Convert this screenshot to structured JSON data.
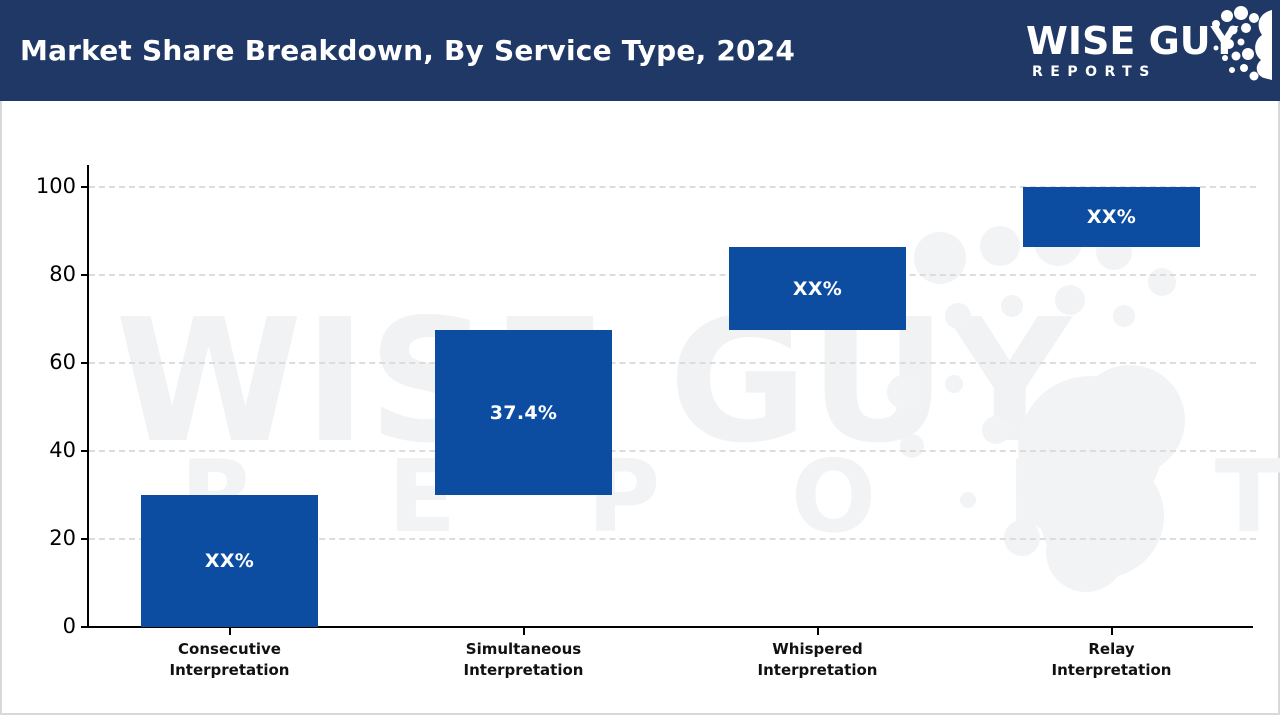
{
  "header": {
    "title": "Market Share Breakdown, By Service Type, 2024",
    "logo": {
      "line1": "WISE GUY",
      "line2": "R E P O R T S"
    }
  },
  "watermark": {
    "line1": "WISE GUY",
    "line2": "R E P O R T S"
  },
  "chart_data": {
    "type": "bar",
    "subtype": "floating-waterfall",
    "title": "Market Share Breakdown, By Service Type, 2024",
    "categories": [
      "Consecutive Interpretation",
      "Simultaneous Interpretation",
      "Whispered Interpretation",
      "Relay Interpretation"
    ],
    "segments": [
      {
        "category": "Consecutive Interpretation",
        "start": 0,
        "end": 30,
        "label": "XX%"
      },
      {
        "category": "Simultaneous Interpretation",
        "start": 30,
        "end": 67.4,
        "label": "37.4%"
      },
      {
        "category": "Whispered Interpretation",
        "start": 67.4,
        "end": 86.4,
        "label": "XX%"
      },
      {
        "category": "Relay Interpretation",
        "start": 86.4,
        "end": 100,
        "label": "XX%"
      }
    ],
    "xlabel": "",
    "ylabel": "",
    "ylim": [
      0,
      100
    ],
    "yticks": [
      0,
      20,
      40,
      60,
      80,
      100
    ],
    "grid": "horizontal-dashed",
    "legend": "none",
    "bar_color": "#0c4da2",
    "bar_label_color": "#ffffff"
  },
  "colors": {
    "header_bg": "#1f3865",
    "bar": "#0c4da2",
    "grid": "#dcdcdc",
    "axis": "#000000",
    "watermark": "#f1f2f4"
  }
}
